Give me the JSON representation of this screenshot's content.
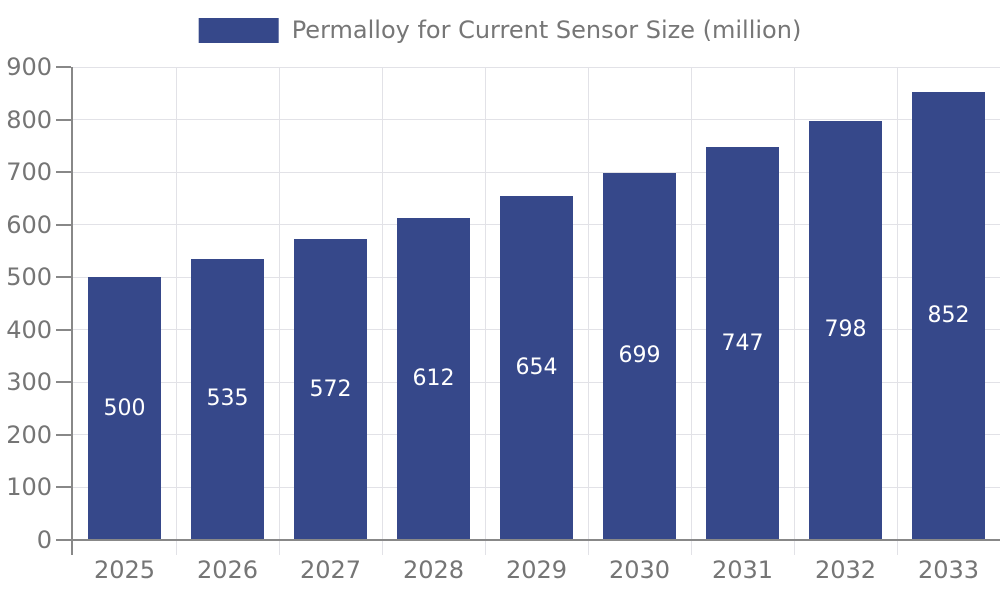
{
  "colors": {
    "bar": "#36488A",
    "grid": "#e2e2e7",
    "axis": "#888888",
    "tick_label": "#757575",
    "legend_text": "#767676",
    "value_label": "#ffffff",
    "background": "#ffffff"
  },
  "chart_data": {
    "type": "bar",
    "title": "",
    "legend": "Permalloy for Current Sensor Size (million)",
    "legend_position": "top-center",
    "categories": [
      "2025",
      "2026",
      "2027",
      "2028",
      "2029",
      "2030",
      "2031",
      "2032",
      "2033"
    ],
    "values": [
      500,
      535,
      572,
      612,
      654,
      699,
      747,
      798,
      852
    ],
    "value_labels_shown": true,
    "xlabel": "",
    "ylabel": "",
    "ylim": [
      0,
      900
    ],
    "ytick_step": 100,
    "ytick_labels": [
      "0",
      "100",
      "200",
      "300",
      "400",
      "500",
      "600",
      "700",
      "800",
      "900"
    ],
    "grid": true
  }
}
